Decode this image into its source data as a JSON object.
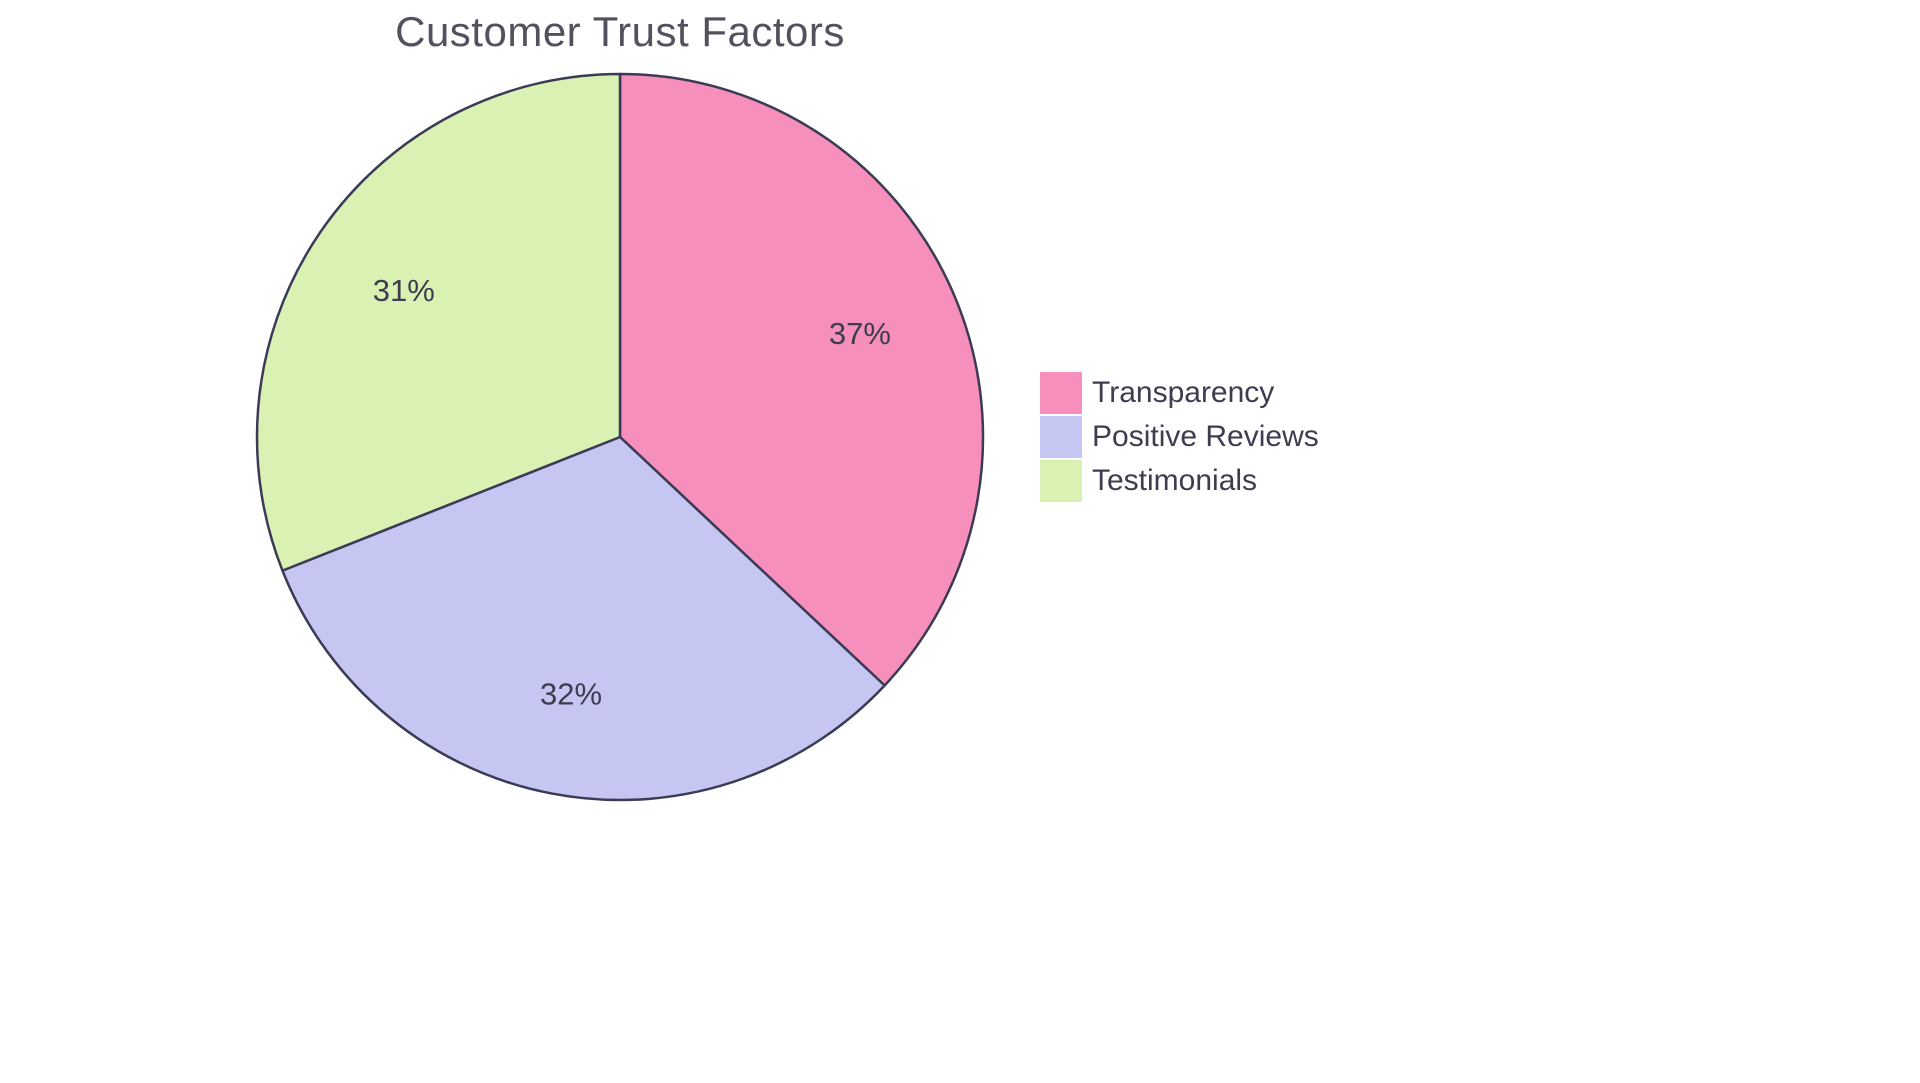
{
  "chart_data": {
    "type": "pie",
    "title": "Customer Trust Factors",
    "labels": [
      "Transparency",
      "Positive Reviews",
      "Testimonials"
    ],
    "values": [
      37,
      32,
      31
    ],
    "unit": "%",
    "colors": [
      "#F78FBC",
      "#C6C6F2",
      "#D9F2B4"
    ],
    "stroke_color": "#3B3B55",
    "start_angle_deg": 0,
    "direction": "clockwise",
    "legend_position": "right",
    "slice_value_labels": [
      "37%",
      "32%",
      "31%"
    ]
  }
}
